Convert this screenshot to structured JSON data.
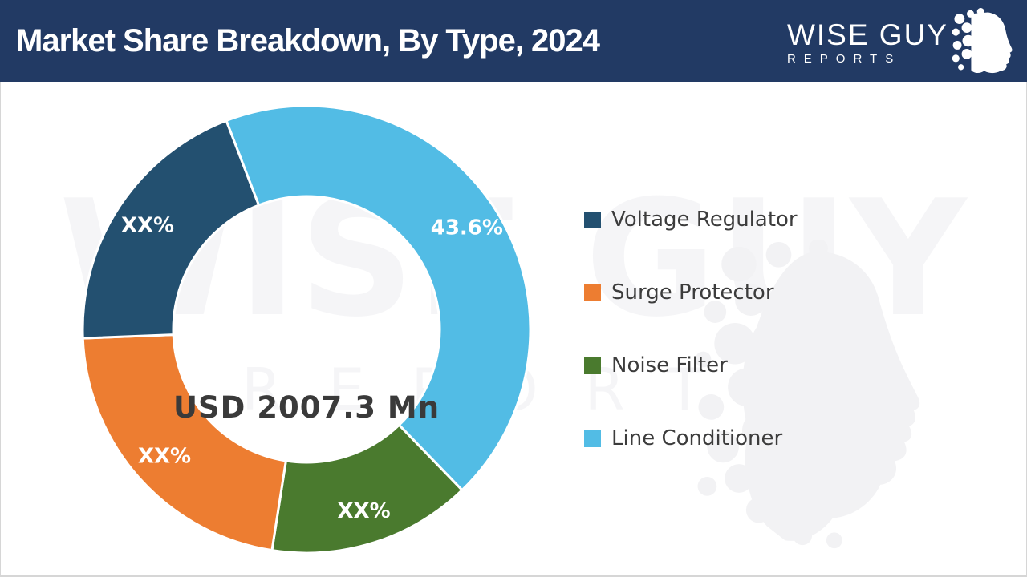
{
  "header": {
    "title": "Market Share Breakdown, By Type, 2024",
    "background_color": "#223A64",
    "logo": {
      "name": "WISE GUY",
      "subtitle": "REPORTS",
      "icon": "face-profile-dots-icon"
    }
  },
  "watermark": {
    "line1": "WISE GUY",
    "line2": "REPORTS",
    "icon": "face-profile-dots-watermark"
  },
  "chart_data": {
    "type": "pie",
    "subtype": "donut",
    "title": "Market Share Breakdown, By Type, 2024",
    "center_label": "USD 2007.3 Mn",
    "legend_position": "right",
    "start_angle_deg": -21,
    "segments": [
      {
        "label": "Voltage Regulator",
        "display_value": "XX%",
        "value_pct_est": 19.8,
        "color": "#235070"
      },
      {
        "label": "Surge Protector",
        "display_value": "XX%",
        "value_pct_est": 21.9,
        "color": "#ED7D31"
      },
      {
        "label": "Noise Filter",
        "display_value": "XX%",
        "value_pct_est": 14.7,
        "color": "#4A7A2E"
      },
      {
        "label": "Line Conditioner",
        "display_value": "43.6%",
        "value_pct_est": 43.6,
        "color": "#52BCE5"
      }
    ],
    "colors": {
      "slice_label_text": "#ffffff",
      "center_label_text": "#3a3a3a",
      "legend_text": "#3c3c3c"
    }
  }
}
